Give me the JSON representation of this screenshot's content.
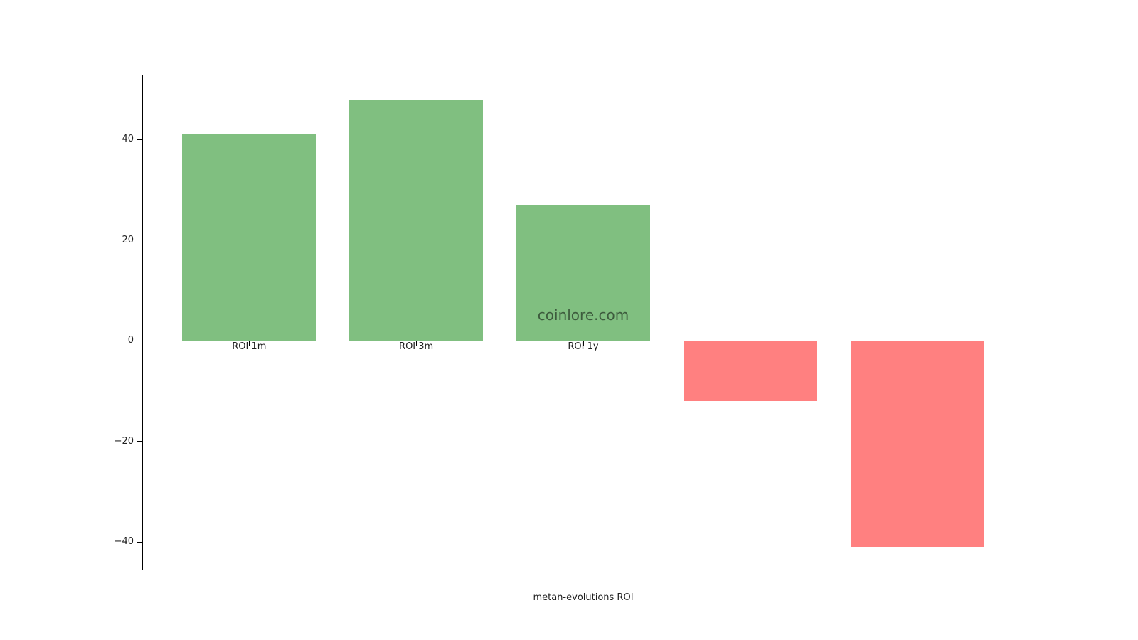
{
  "watermark": {
    "text": "coinlore.com",
    "color": "rgba(0,0,0,0.52)"
  },
  "chart_data": {
    "type": "bar",
    "title": "",
    "xlabel": "metan-evolutions ROI",
    "ylabel": "",
    "categories": [
      "ROI 1m",
      "ROI 3m",
      "ROI 1y",
      "",
      ""
    ],
    "values": [
      41,
      48,
      27,
      -12,
      -41
    ],
    "bar_colors": [
      "#80BF80",
      "#80BF80",
      "#80BF80",
      "#FF8080",
      "#FF8080"
    ],
    "positive_color": "#80BF80",
    "negative_color": "#FF8080",
    "y_ticks": [
      40,
      20,
      0,
      -20,
      -40
    ],
    "y_tick_labels": [
      "40",
      "20",
      "0",
      "−20",
      "−40"
    ],
    "ylim": [
      -45.5,
      52.5
    ],
    "baseline": 0,
    "grid": false,
    "legend_position": "none",
    "axis_color": "#000000",
    "text_color": "#1f1f1f"
  }
}
